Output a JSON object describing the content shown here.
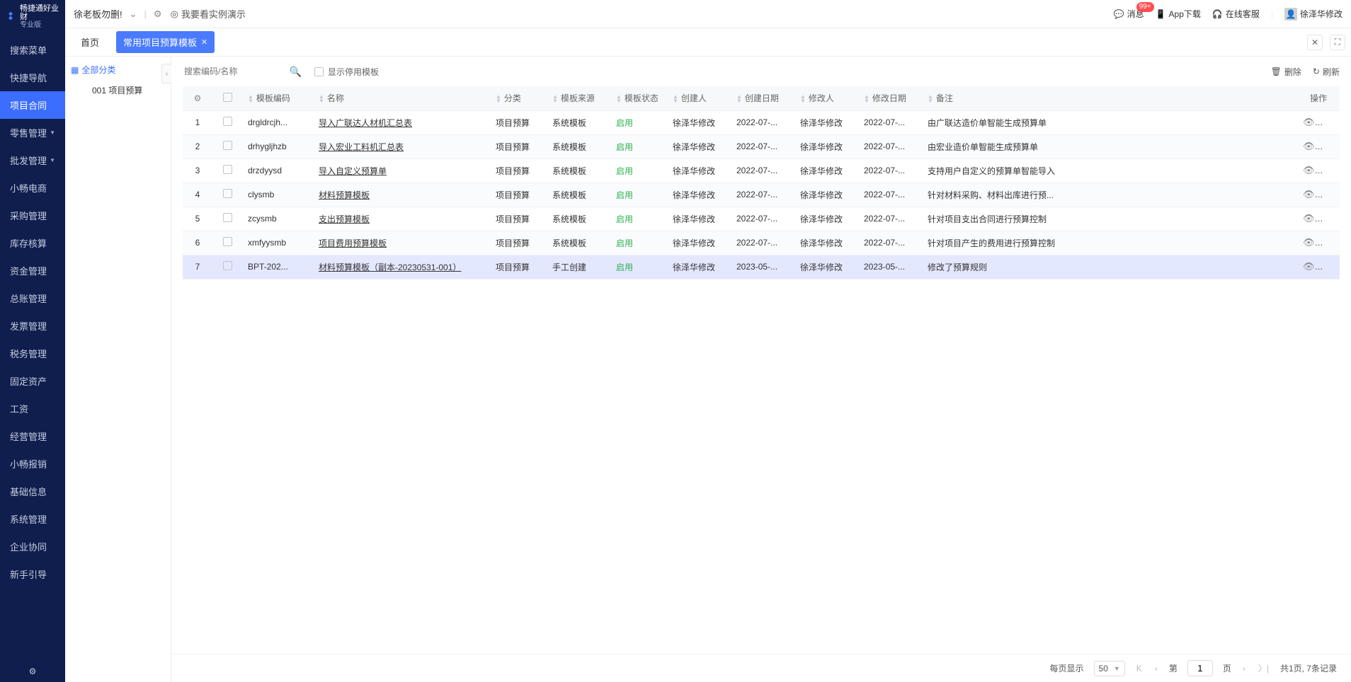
{
  "colors": {
    "primary": "#3b6eff",
    "sidebarBg": "#0f1e4d",
    "statusOn": "#2eaf4d",
    "badge": "#ff4d4f"
  },
  "logo": {
    "line1": "畅捷通好业财",
    "line2": "专业版"
  },
  "sidebar": [
    {
      "label": "搜索菜单",
      "caret": false
    },
    {
      "label": "快捷导航",
      "caret": false
    },
    {
      "label": "项目合同",
      "caret": false,
      "active": true
    },
    {
      "label": "零售管理",
      "caret": true
    },
    {
      "label": "批发管理",
      "caret": true
    },
    {
      "label": "小畅电商",
      "caret": false
    },
    {
      "label": "采购管理",
      "caret": false
    },
    {
      "label": "库存核算",
      "caret": false
    },
    {
      "label": "资金管理",
      "caret": false
    },
    {
      "label": "总账管理",
      "caret": false
    },
    {
      "label": "发票管理",
      "caret": false
    },
    {
      "label": "税务管理",
      "caret": false
    },
    {
      "label": "固定资产",
      "caret": false
    },
    {
      "label": "工资",
      "caret": false
    },
    {
      "label": "经营管理",
      "caret": false
    },
    {
      "label": "小畅报销",
      "caret": false
    },
    {
      "label": "基础信息",
      "caret": false
    },
    {
      "label": "系统管理",
      "caret": false
    },
    {
      "label": "企业协同",
      "caret": false
    },
    {
      "label": "新手引导",
      "caret": false
    }
  ],
  "topbar": {
    "orgName": "徐老板勿删!",
    "demo": "我要看实例演示",
    "msg": "消息",
    "msgBadge": "99+",
    "app": "App下载",
    "cs": "在线客服",
    "user": "徐泽华修改"
  },
  "tabs": {
    "home": "首页",
    "active": "常用项目预算模板"
  },
  "tree": {
    "root": "全部分类",
    "child": "001 项目预算"
  },
  "toolbar": {
    "searchPlaceholder": "搜索编码/名称",
    "showDisabled": "显示停用模板",
    "delete": "删除",
    "refresh": "刷新"
  },
  "table": {
    "headers": {
      "code": "模板编码",
      "name": "名称",
      "category": "分类",
      "source": "模板来源",
      "status": "模板状态",
      "creator": "创建人",
      "createDate": "创建日期",
      "modifier": "修改人",
      "modifyDate": "修改日期",
      "remark": "备注",
      "ops": "操作"
    },
    "rows": [
      {
        "idx": "1",
        "code": "drgldrcjh...",
        "name": "导入广联达人材机汇总表",
        "category": "项目预算",
        "source": "系统模板",
        "status": "启用",
        "creator": "徐泽华修改",
        "createDate": "2022-07-...",
        "modifier": "徐泽华修改",
        "modifyDate": "2022-07-...",
        "remark": "由广联达造价单智能生成预算单"
      },
      {
        "idx": "2",
        "code": "drhygljhzb",
        "name": "导入宏业工料机汇总表",
        "category": "项目预算",
        "source": "系统模板",
        "status": "启用",
        "creator": "徐泽华修改",
        "createDate": "2022-07-...",
        "modifier": "徐泽华修改",
        "modifyDate": "2022-07-...",
        "remark": "由宏业造价单智能生成预算单"
      },
      {
        "idx": "3",
        "code": "drzdyysd",
        "name": "导入自定义预算单",
        "category": "项目预算",
        "source": "系统模板",
        "status": "启用",
        "creator": "徐泽华修改",
        "createDate": "2022-07-...",
        "modifier": "徐泽华修改",
        "modifyDate": "2022-07-...",
        "remark": "支持用户自定义的预算单智能导入"
      },
      {
        "idx": "4",
        "code": "clysmb",
        "name": "材料预算模板",
        "category": "项目预算",
        "source": "系统模板",
        "status": "启用",
        "creator": "徐泽华修改",
        "createDate": "2022-07-...",
        "modifier": "徐泽华修改",
        "modifyDate": "2022-07-...",
        "remark": "针对材料采购、材料出库进行预..."
      },
      {
        "idx": "5",
        "code": "zcysmb",
        "name": "支出预算模板",
        "category": "项目预算",
        "source": "系统模板",
        "status": "启用",
        "creator": "徐泽华修改",
        "createDate": "2022-07-...",
        "modifier": "徐泽华修改",
        "modifyDate": "2022-07-...",
        "remark": "针对项目支出合同进行预算控制"
      },
      {
        "idx": "6",
        "code": "xmfyysmb",
        "name": "项目费用预算模板",
        "category": "项目预算",
        "source": "系统模板",
        "status": "启用",
        "creator": "徐泽华修改",
        "createDate": "2022-07-...",
        "modifier": "徐泽华修改",
        "modifyDate": "2022-07-...",
        "remark": "针对项目产生的费用进行预算控制"
      },
      {
        "idx": "7",
        "code": "BPT-202...",
        "name": "材料预算模板（副本-20230531-001）",
        "category": "项目预算",
        "source": "手工创建",
        "status": "启用",
        "creator": "徐泽华修改",
        "createDate": "2023-05-...",
        "modifier": "徐泽华修改",
        "modifyDate": "2023-05-...",
        "remark": "修改了预算规则",
        "selected": true
      }
    ]
  },
  "pager": {
    "perPageLabel": "每页显示",
    "perPageValue": "50",
    "pageLabelPrefix": "第",
    "pageValue": "1",
    "pageLabelSuffix": "页",
    "total": "共1页, 7条记录"
  }
}
